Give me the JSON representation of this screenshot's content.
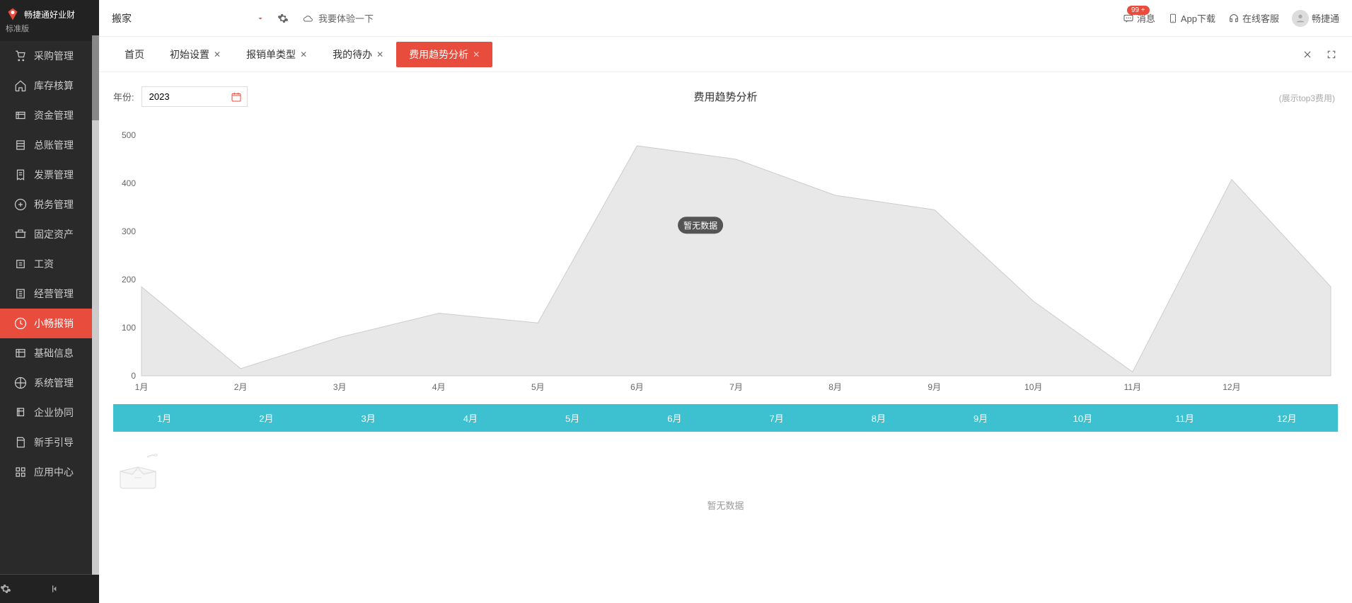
{
  "brand": {
    "name": "畅捷通好业财",
    "edition": "标准版"
  },
  "sidebar": {
    "items": [
      {
        "label": "采购管理",
        "icon": "cart"
      },
      {
        "label": "库存核算",
        "icon": "home"
      },
      {
        "label": "资金管理",
        "icon": "money"
      },
      {
        "label": "总账管理",
        "icon": "ledger"
      },
      {
        "label": "发票管理",
        "icon": "invoice"
      },
      {
        "label": "税务管理",
        "icon": "tax"
      },
      {
        "label": "固定资产",
        "icon": "asset"
      },
      {
        "label": "工资",
        "icon": "salary"
      },
      {
        "label": "经营管理",
        "icon": "biz"
      },
      {
        "label": "小畅报销",
        "icon": "reimburse",
        "active": true
      },
      {
        "label": "基础信息",
        "icon": "base"
      },
      {
        "label": "系统管理",
        "icon": "system"
      },
      {
        "label": "企业协同",
        "icon": "collab"
      },
      {
        "label": "新手引导",
        "icon": "guide"
      },
      {
        "label": "应用中心",
        "icon": "apps"
      }
    ]
  },
  "topbar": {
    "search": "搬家",
    "try": "我要体验一下",
    "links": {
      "message": "消息",
      "badge": "99 +",
      "appdownload": "App下载",
      "service": "在线客服",
      "username": "畅捷通"
    }
  },
  "tabs": [
    {
      "label": "首页",
      "closable": false
    },
    {
      "label": "初始设置",
      "closable": true
    },
    {
      "label": "报销单类型",
      "closable": true
    },
    {
      "label": "我的待办",
      "closable": true
    },
    {
      "label": "费用趋势分析",
      "closable": true,
      "active": true
    }
  ],
  "page": {
    "year_label": "年份:",
    "year_value": "2023",
    "title": "费用趋势分析",
    "subtitle": "(展示top3费用)",
    "tooltip": "暂无数据",
    "empty_text": "暂无数据"
  },
  "chart": {
    "type": "area",
    "y_ticks": [
      0,
      100,
      200,
      300,
      400,
      500
    ],
    "ylim": [
      0,
      500
    ],
    "x_labels": [
      "1月",
      "2月",
      "3月",
      "4月",
      "5月",
      "6月",
      "7月",
      "8月",
      "9月",
      "10月",
      "11月",
      "12月"
    ],
    "values": [
      185,
      15,
      80,
      130,
      110,
      478,
      450,
      375,
      345,
      155,
      8,
      408,
      185
    ],
    "area_fill": "#e8e8e8",
    "area_stroke": "#cccccc",
    "baseline_color": "#bbbbbb",
    "background": "#ffffff",
    "label_fontsize": 12,
    "tooltip_bg": "#555555",
    "tooltip_fg": "#ffffff"
  },
  "month_bar": {
    "bg": "#3dc0d0",
    "fg": "#ffffff",
    "months": [
      "1月",
      "2月",
      "3月",
      "4月",
      "5月",
      "6月",
      "7月",
      "8月",
      "9月",
      "10月",
      "11月",
      "12月"
    ]
  }
}
